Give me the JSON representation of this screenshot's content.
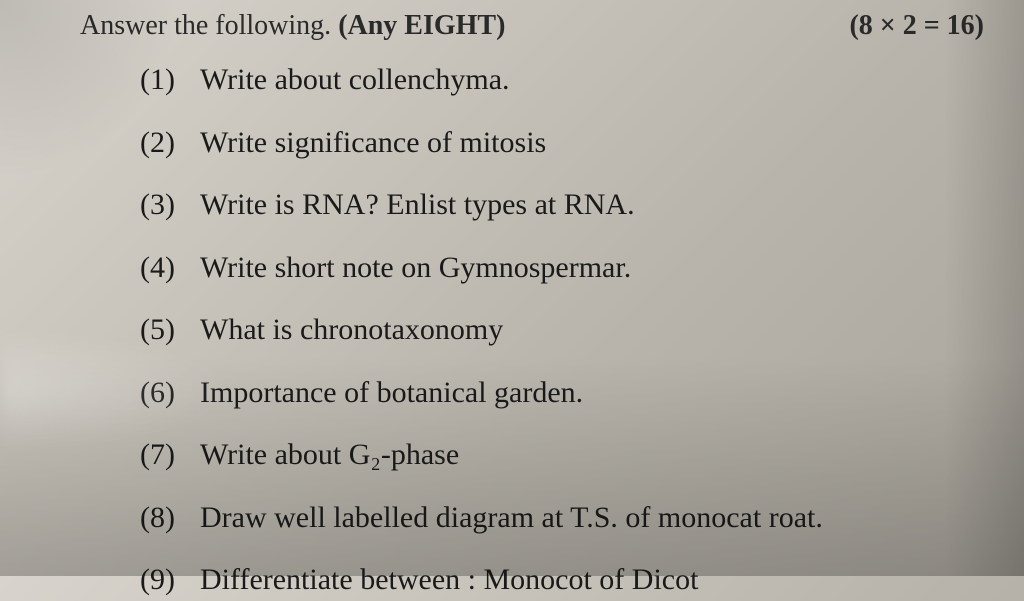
{
  "header": {
    "instruction_prefix": "Answer the following.",
    "instruction_bold": "(Any EIGHT)",
    "marks": "(8 × 2 = 16)"
  },
  "questions": [
    {
      "num": "(1)",
      "text": "Write about collenchyma."
    },
    {
      "num": "(2)",
      "text": "Write significance of mitosis"
    },
    {
      "num": "(3)",
      "text": "Write is RNA? Enlist types at RNA."
    },
    {
      "num": "(4)",
      "text": "Write short note on Gymnospermar."
    },
    {
      "num": "(5)",
      "text": "What is chronotaxonomy"
    },
    {
      "num": "(6)",
      "text": "Importance of botanical garden."
    },
    {
      "num": "(7)",
      "text": "Write about G₂-phase"
    },
    {
      "num": "(8)",
      "text": "Draw well labelled diagram at T.S. of monocat roat."
    },
    {
      "num": "(9)",
      "text": "Differentiate between : Monocot of Dicot"
    }
  ],
  "styling": {
    "background_gradient_start": "#d8d4cd",
    "background_gradient_end": "#a8a49b",
    "text_color": "#1a1a1a",
    "header_fontsize": 28,
    "question_fontsize": 30,
    "font_family": "Georgia, Times New Roman, serif"
  }
}
